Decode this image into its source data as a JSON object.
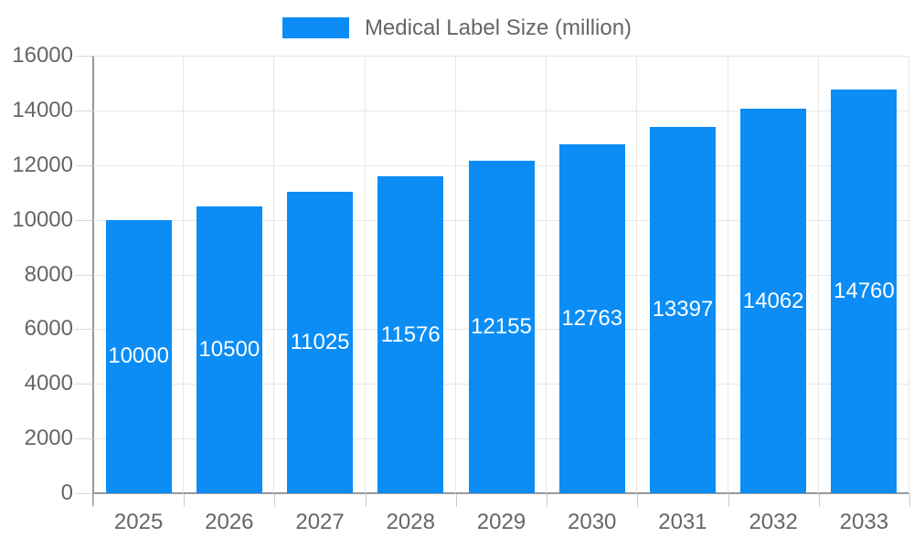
{
  "legend": {
    "label": "Medical Label Size (million)"
  },
  "colors": {
    "bar": "#0b8df5",
    "grid": "#e6e6e6",
    "axis": "#999999",
    "y_tick": "#d9d9d9",
    "x_tick": "#cccccc",
    "text": "#666666",
    "bar_label": "#ffffff",
    "background": "#ffffff"
  },
  "chart_data": {
    "type": "bar",
    "title": "",
    "series_name": "Medical Label Size (million)",
    "categories": [
      "2025",
      "2026",
      "2027",
      "2028",
      "2029",
      "2030",
      "2031",
      "2032",
      "2033"
    ],
    "values": [
      10000,
      10500,
      11025,
      11576,
      12155,
      12763,
      13397,
      14062,
      14760
    ],
    "xlabel": "",
    "ylabel": "",
    "ylim": [
      0,
      16000
    ],
    "y_ticks": [
      0,
      2000,
      4000,
      6000,
      8000,
      10000,
      12000,
      14000,
      16000
    ],
    "grid": true,
    "legend_position": "top",
    "bar_value_labels": true
  }
}
